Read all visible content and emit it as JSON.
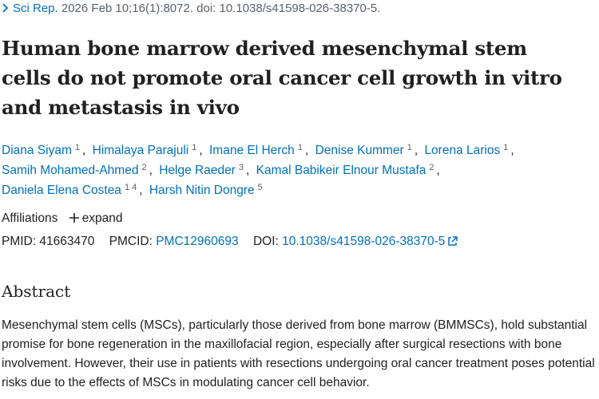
{
  "citation": {
    "journal": "Sci Rep.",
    "details": "2026 Feb 10;16(1):8072. doi: 10.1038/s41598-026-38370-5."
  },
  "title": "Human bone marrow derived mesenchymal stem cells do not promote oral cancer cell growth in vitro and metastasis in vivo",
  "authors": [
    {
      "name": "Diana Siyam",
      "affiliations": [
        "1"
      ]
    },
    {
      "name": "Himalaya Parajuli",
      "affiliations": [
        "1"
      ]
    },
    {
      "name": "Imane El Herch",
      "affiliations": [
        "1"
      ]
    },
    {
      "name": "Denise Kummer",
      "affiliations": [
        "1"
      ]
    },
    {
      "name": "Lorena Larios",
      "affiliations": [
        "1"
      ]
    },
    {
      "name": "Samih Mohamed-Ahmed",
      "affiliations": [
        "2"
      ]
    },
    {
      "name": "Helge Raeder",
      "affiliations": [
        "3"
      ]
    },
    {
      "name": "Kamal Babikeir Elnour Mustafa",
      "affiliations": [
        "2"
      ]
    },
    {
      "name": "Daniela Elena Costea",
      "affiliations": [
        "1",
        "4"
      ]
    },
    {
      "name": "Harsh Nitin Dongre",
      "affiliations": [
        "5"
      ]
    }
  ],
  "affiliations": {
    "label": "Affiliations",
    "expand": "expand"
  },
  "identifiers": {
    "pmid": {
      "label": "PMID:",
      "value": "41663470"
    },
    "pmcid": {
      "label": "PMCID:",
      "value": "PMC12960693"
    },
    "doi": {
      "label": "DOI:",
      "value": "10.1038/s41598-026-38370-5"
    }
  },
  "abstract": {
    "heading": "Abstract",
    "text": "Mesenchymal stem cells (MSCs), particularly those derived from bone marrow (BMMSCs), hold substantial promise for bone regeneration in the maxillofacial region, especially after surgical resections with bone involvement. However, their use in patients with resections undergoing oral cancer treatment poses potential risks due to the effects of MSCs in modulating cancer cell behavior."
  }
}
